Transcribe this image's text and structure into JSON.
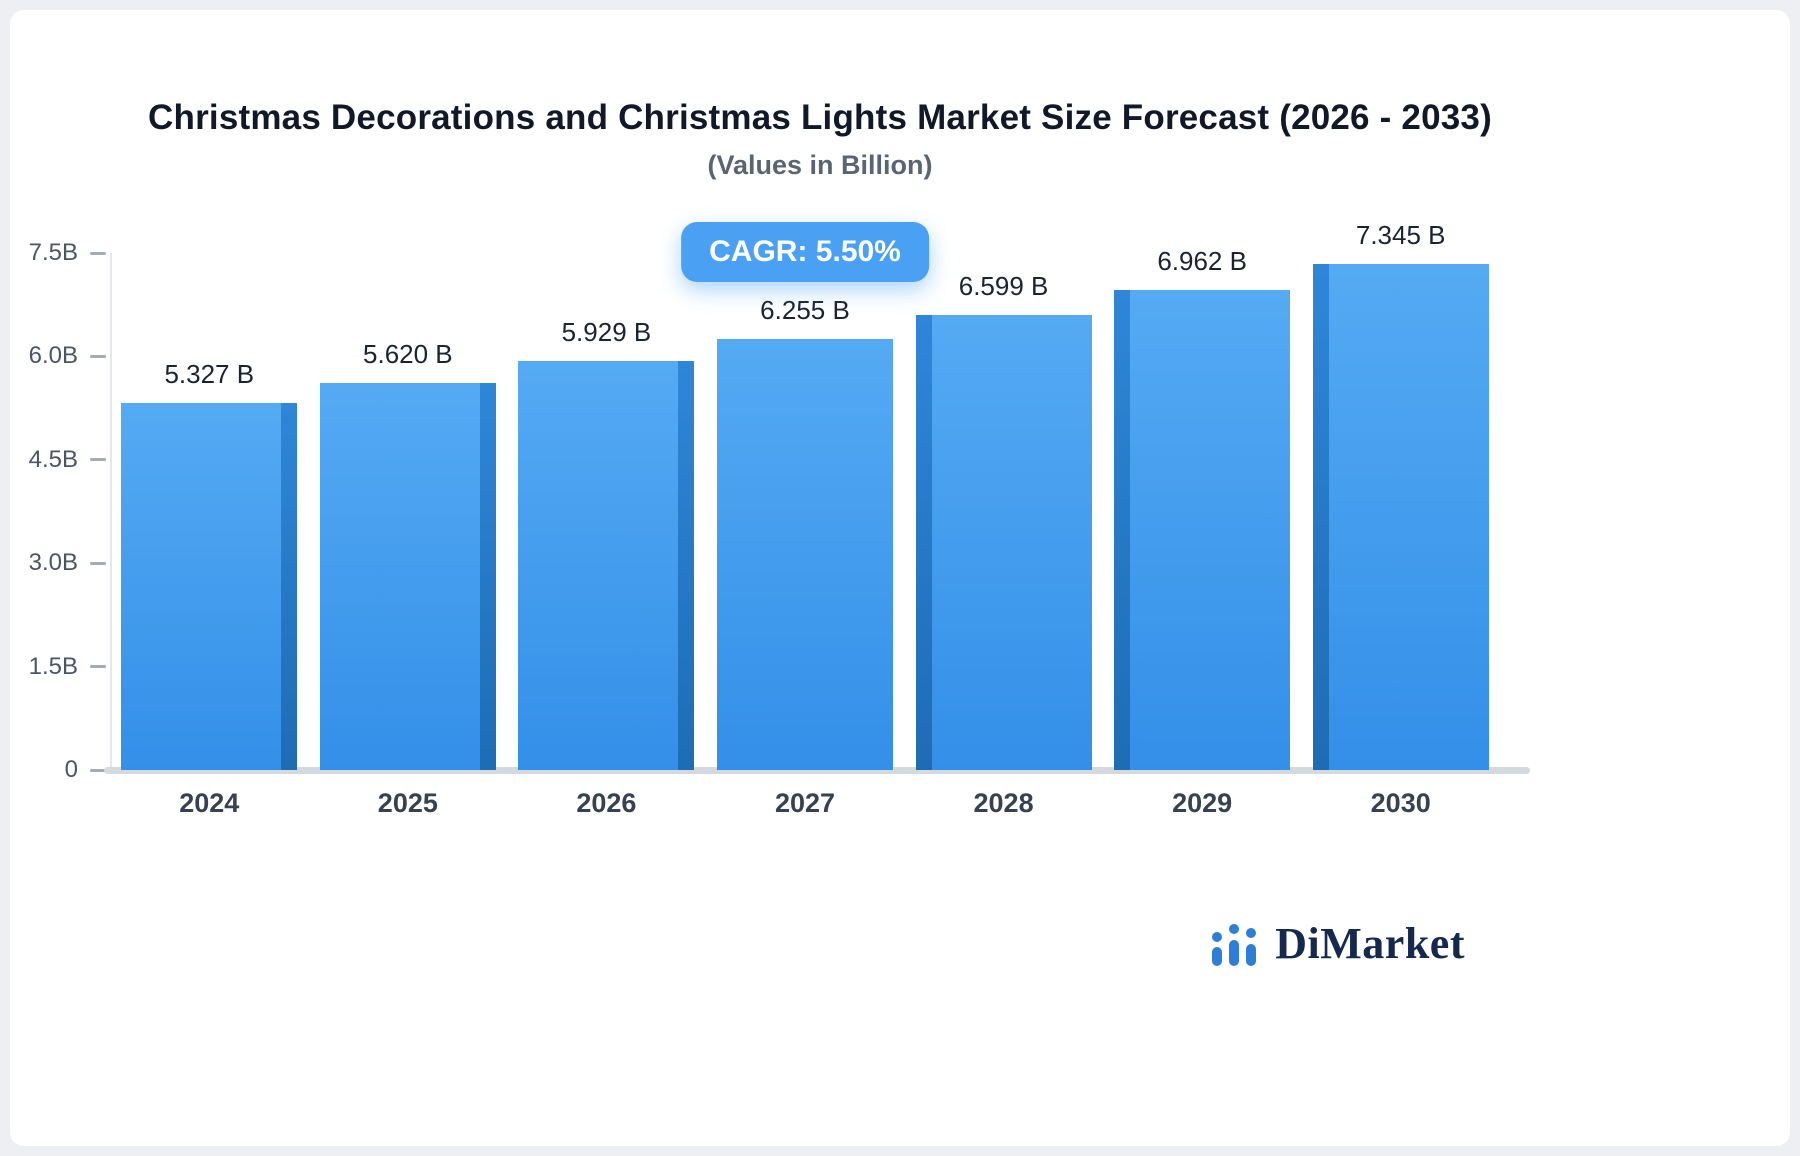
{
  "chart_data": {
    "type": "bar",
    "title": "Christmas Decorations and Christmas Lights Market Size Forecast (2026 - 2033)",
    "subtitle": "(Values in Billion)",
    "categories": [
      "2024",
      "2025",
      "2026",
      "2027",
      "2028",
      "2029",
      "2030"
    ],
    "values": [
      5.327,
      5.62,
      5.929,
      6.255,
      6.599,
      6.962,
      7.345
    ],
    "value_labels": [
      "5.327 B",
      "5.620 B",
      "5.929 B",
      "6.255 B",
      "6.599 B",
      "6.962 B",
      "7.345 B"
    ],
    "bar_3d_sides": [
      "right",
      "right",
      "right",
      "none",
      "left",
      "left",
      "left"
    ],
    "ylim": [
      0,
      7.5
    ],
    "yticks": [
      {
        "value": 0,
        "label": "0"
      },
      {
        "value": 1.5,
        "label": "1.5B"
      },
      {
        "value": 3.0,
        "label": "3.0B"
      },
      {
        "value": 4.5,
        "label": "4.5B"
      },
      {
        "value": 6.0,
        "label": "6.0B"
      },
      {
        "value": 7.5,
        "label": "7.5B"
      }
    ],
    "grid": false,
    "legend": false,
    "xlabel": "",
    "ylabel": ""
  },
  "badge": {
    "label": "CAGR: 5.50%"
  },
  "logo": {
    "text": "DiMarket",
    "icon": "bar-chart-icon"
  },
  "colors": {
    "bar_top": "#55aaf3",
    "bar_bottom": "#338fe8",
    "bar_side_top": "#2f86d8",
    "bar_side_bottom": "#1e6cb4",
    "badge_bg": "#4aa0f2",
    "badge_text": "#ffffff",
    "title_text": "#111827",
    "subtitle_text": "#5b6472",
    "axis_text": "#4b5563",
    "value_text": "#1b2333",
    "baseline": "#d4d9de",
    "logo_blue": "#2e7dd6",
    "logo_navy": "#15294e"
  }
}
